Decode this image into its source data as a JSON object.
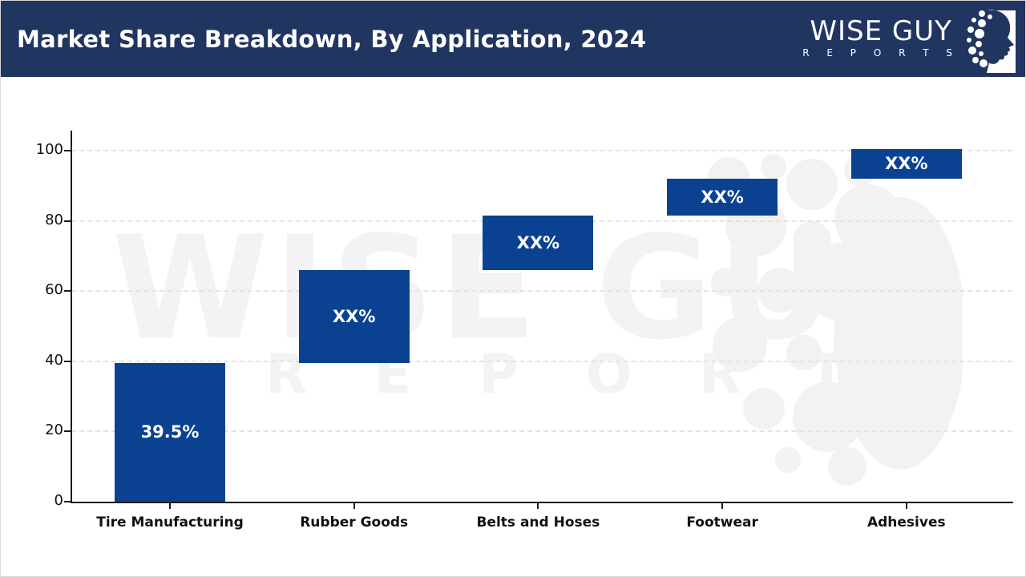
{
  "header": {
    "title": "Market Share Breakdown, By Application, 2024",
    "logo": {
      "line1": "WISE GUY",
      "line2": "R E P O R T S"
    },
    "bg_color": "#213561",
    "text_color": "#ffffff"
  },
  "watermark": {
    "line1": "WISE GUY",
    "line2": "R E P O R T S",
    "color": "#f3f3f3"
  },
  "chart_data": {
    "type": "bar",
    "subtype": "waterfall",
    "title": "Market Share Breakdown, By Application, 2024",
    "categories": [
      "Tire Manufacturing",
      "Rubber Goods",
      "Belts and Hoses",
      "Footwear",
      "Adhesives"
    ],
    "segments": [
      {
        "category": "Tire Manufacturing",
        "start": 0,
        "end": 39.5,
        "label": "39.5%"
      },
      {
        "category": "Rubber Goods",
        "start": 39.5,
        "end": 66,
        "label": "XX%"
      },
      {
        "category": "Belts and Hoses",
        "start": 66,
        "end": 81.5,
        "label": "XX%"
      },
      {
        "category": "Footwear",
        "start": 81.5,
        "end": 92,
        "label": "XX%"
      },
      {
        "category": "Adhesives",
        "start": 92,
        "end": 100.5,
        "label": "XX%"
      }
    ],
    "yticks": [
      0,
      20,
      40,
      60,
      80,
      100
    ],
    "ylim": [
      0,
      106
    ],
    "xlabel": "",
    "ylabel": "",
    "grid": "horizontal-dashed",
    "legend": "none",
    "bar_color": "#0a4291",
    "bar_label_color": "#ffffff",
    "axis_color": "#1a1a1a",
    "grid_color": "#e4e4e4"
  }
}
